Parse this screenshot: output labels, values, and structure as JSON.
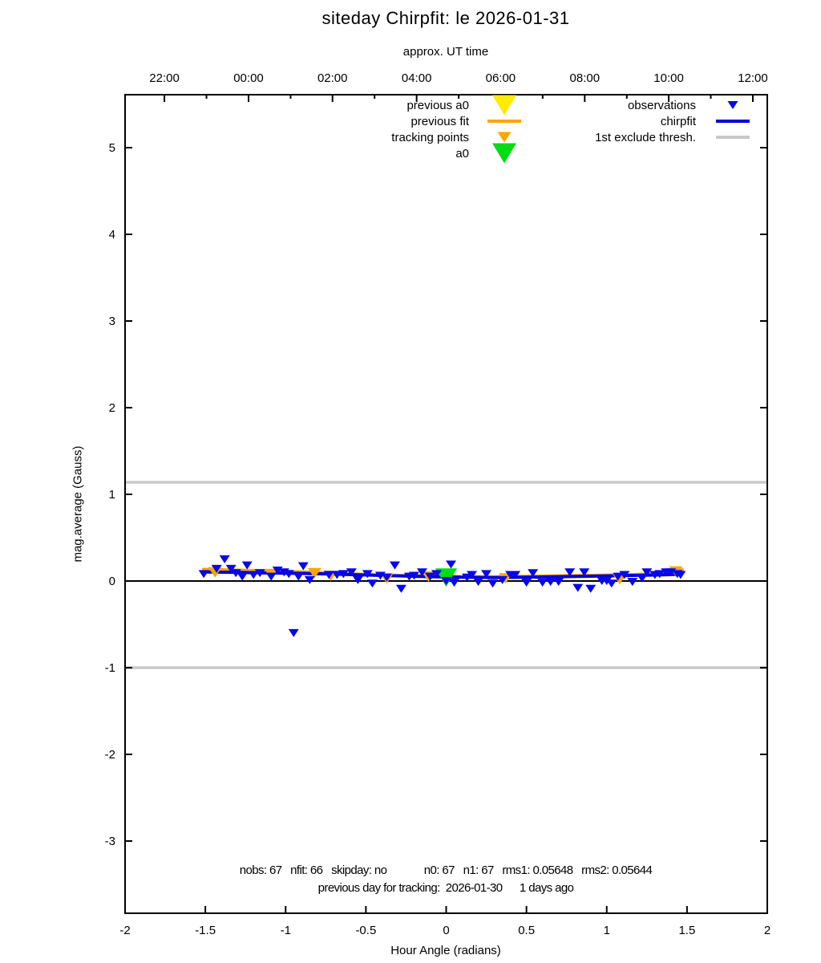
{
  "title": "siteday Chirpfit:  le  2026-01-31",
  "stats": {
    "line1": "nobs: 67   nfit: 66   skipday: no             n0: 67   n1: 67   rms1: 0.05648   rms2: 0.05644",
    "line2": "previous day for tracking:  2026-01-30      1 days ago",
    "values": {
      "nobs": 67,
      "nfit": 66,
      "skipday": "no",
      "n0": 67,
      "n1": 67,
      "rms1": 0.05648,
      "rms2": 0.05644,
      "previous_day_for_tracking": "2026-01-30",
      "days_ago": "1 days ago"
    }
  },
  "chart_data": {
    "type": "scatter",
    "title": "siteday Chirpfit:  le  2026-01-31",
    "xlabel": "Hour Angle (radians)",
    "ylabel": "mag.average (Gauss)",
    "x2label": "approx. UT time",
    "xlim": [
      -2,
      2
    ],
    "ylim": [
      -3.833,
      5.611
    ],
    "grid": false,
    "xticks": {
      "values": [
        -2,
        -1.5,
        -1,
        -0.5,
        0,
        0.5,
        1,
        1.5,
        2
      ],
      "labels": [
        "-2",
        "-1.5",
        "-1",
        "-0.5",
        "0",
        "0.5",
        "1",
        "1.5",
        "2"
      ]
    },
    "yticks": {
      "values": [
        -3,
        -2,
        -1,
        0,
        1,
        2,
        3,
        4,
        5
      ],
      "labels": [
        "-3",
        "-2",
        "-1",
        "0",
        "1",
        "2",
        "3",
        "4",
        "5"
      ]
    },
    "x2ticks": {
      "major": [
        {
          "label": "22:00",
          "x": -1.755
        },
        {
          "label": "00:00",
          "x": -1.231
        },
        {
          "label": "02:00",
          "x": -0.708
        },
        {
          "label": "04:00",
          "x": -0.184
        },
        {
          "label": "06:00",
          "x": 0.339
        },
        {
          "label": "08:00",
          "x": 0.863
        },
        {
          "label": "10:00",
          "x": 1.386
        },
        {
          "label": "12:00",
          "x": 1.91
        }
      ],
      "minor": [
        -1.493,
        -0.969,
        -0.446,
        0.078,
        0.601,
        1.125,
        1.648
      ]
    },
    "zero_line_y": 0,
    "exclude_thresholds": [
      1.139,
      -1.0
    ],
    "colors": {
      "observations": "#0707ee",
      "chirpfit": "#0000d6",
      "previous_fit": "#ffa500",
      "tracking_points": "#ffa500",
      "a0": "#00dd12",
      "previous_a0": "#ffeb00",
      "threshold": "#c8c8c8",
      "zero_line": "#000000"
    },
    "series": {
      "observations": {
        "points": [
          [
            -1.51,
            0.08
          ],
          [
            -1.43,
            0.14
          ],
          [
            -1.38,
            0.25
          ],
          [
            -1.34,
            0.14
          ],
          [
            -1.31,
            0.09
          ],
          [
            -1.27,
            0.05
          ],
          [
            -1.24,
            0.18
          ],
          [
            -1.2,
            0.07
          ],
          [
            -1.16,
            0.09
          ],
          [
            -1.09,
            0.05
          ],
          [
            -1.05,
            0.12
          ],
          [
            -1.01,
            0.1
          ],
          [
            -0.98,
            0.08
          ],
          [
            -0.95,
            -0.6
          ],
          [
            -0.92,
            0.05
          ],
          [
            -0.89,
            0.17
          ],
          [
            -0.85,
            0.01
          ],
          [
            -0.73,
            0.07
          ],
          [
            -0.68,
            0.07
          ],
          [
            -0.64,
            0.08
          ],
          [
            -0.59,
            0.1
          ],
          [
            -0.55,
            0.01
          ],
          [
            -0.49,
            0.08
          ],
          [
            -0.46,
            -0.03
          ],
          [
            -0.41,
            0.06
          ],
          [
            -0.37,
            0.04
          ],
          [
            -0.32,
            0.18
          ],
          [
            -0.28,
            -0.09
          ],
          [
            -0.23,
            0.05
          ],
          [
            -0.2,
            0.06
          ],
          [
            -0.15,
            0.1
          ],
          [
            -0.1,
            0.05
          ],
          [
            -0.06,
            0.08
          ],
          [
            0.0,
            0.0
          ],
          [
            0.03,
            0.19
          ],
          [
            0.05,
            -0.02
          ],
          [
            0.13,
            0.04
          ],
          [
            0.16,
            0.07
          ],
          [
            0.2,
            -0.01
          ],
          [
            0.25,
            0.08
          ],
          [
            0.29,
            -0.03
          ],
          [
            0.35,
            0.01
          ],
          [
            0.4,
            0.07
          ],
          [
            0.43,
            0.07
          ],
          [
            0.5,
            -0.02
          ],
          [
            0.54,
            0.09
          ],
          [
            0.6,
            -0.02
          ],
          [
            0.65,
            -0.01
          ],
          [
            0.7,
            -0.01
          ],
          [
            0.77,
            0.1
          ],
          [
            0.82,
            -0.08
          ],
          [
            0.86,
            0.1
          ],
          [
            0.9,
            -0.09
          ],
          [
            0.97,
            0.0
          ],
          [
            1.0,
            0.0
          ],
          [
            1.03,
            -0.03
          ],
          [
            1.07,
            0.05
          ],
          [
            1.11,
            0.07
          ],
          [
            1.16,
            -0.01
          ],
          [
            1.22,
            0.03
          ],
          [
            1.25,
            0.1
          ],
          [
            1.3,
            0.07
          ],
          [
            1.33,
            0.08
          ],
          [
            1.37,
            0.1
          ],
          [
            1.4,
            0.1
          ],
          [
            1.44,
            0.08
          ],
          [
            1.46,
            0.07
          ]
        ]
      },
      "chirpfit": {
        "line": [
          [
            -1.52,
            0.105
          ],
          [
            -1.3,
            0.1
          ],
          [
            -1.1,
            0.093
          ],
          [
            -0.9,
            0.088
          ],
          [
            -0.7,
            0.08
          ],
          [
            -0.5,
            0.07
          ],
          [
            -0.3,
            0.06
          ],
          [
            -0.1,
            0.05
          ],
          [
            0.1,
            0.044
          ],
          [
            0.3,
            0.04
          ],
          [
            0.5,
            0.044
          ],
          [
            0.7,
            0.05
          ],
          [
            0.9,
            0.056
          ],
          [
            1.1,
            0.062
          ],
          [
            1.3,
            0.07
          ],
          [
            1.47,
            0.078
          ]
        ]
      },
      "previous_fit": {
        "line": [
          [
            -1.52,
            0.135
          ],
          [
            -1.3,
            0.125
          ],
          [
            -1.1,
            0.12
          ],
          [
            -0.9,
            0.105
          ],
          [
            -0.7,
            0.09
          ],
          [
            -0.5,
            0.075
          ],
          [
            -0.35,
            0.06
          ],
          [
            -0.2,
            0.065
          ],
          [
            -0.05,
            0.058
          ],
          [
            0.1,
            0.05
          ],
          [
            0.3,
            0.048
          ],
          [
            0.5,
            0.055
          ],
          [
            0.7,
            0.06
          ],
          [
            0.9,
            0.065
          ],
          [
            1.1,
            0.07
          ],
          [
            1.25,
            0.08
          ],
          [
            1.38,
            0.11
          ],
          [
            1.48,
            0.13
          ]
        ]
      },
      "tracking_points": {
        "points": [
          [
            -1.44,
            0.1
          ],
          [
            -1.09,
            0.08
          ],
          [
            -0.82,
            0.09
          ],
          [
            -0.72,
            0.06
          ],
          [
            -0.37,
            0.03
          ],
          [
            -0.11,
            0.05
          ],
          [
            0.37,
            0.03
          ],
          [
            1.08,
            0.02
          ],
          [
            1.43,
            0.11
          ]
        ]
      },
      "a0": {
        "points": [
          [
            0.0,
            0.04
          ]
        ]
      },
      "previous_a0": {
        "points": [
          [
            0.0,
            0.05
          ]
        ]
      }
    },
    "legend": {
      "position": "top-inside",
      "columns": [
        {
          "items": [
            {
              "label": "previous a0",
              "marker": "triangle",
              "size": "large",
              "color": "#ffeb00"
            },
            {
              "label": "previous fit",
              "marker": "line",
              "color": "#ffa500"
            },
            {
              "label": "tracking points",
              "marker": "triangle",
              "size": "small",
              "color": "#ffa500"
            },
            {
              "label": "a0",
              "marker": "triangle",
              "size": "large",
              "color": "#00dd12"
            }
          ]
        },
        {
          "items": [
            {
              "label": "observations",
              "marker": "triangle",
              "size": "tiny",
              "color": "#0707ee"
            },
            {
              "label": "chirpfit",
              "marker": "line",
              "color": "#0000d6"
            },
            {
              "label": "1st exclude thresh.",
              "marker": "line",
              "color": "#c8c8c8"
            }
          ]
        }
      ]
    }
  }
}
